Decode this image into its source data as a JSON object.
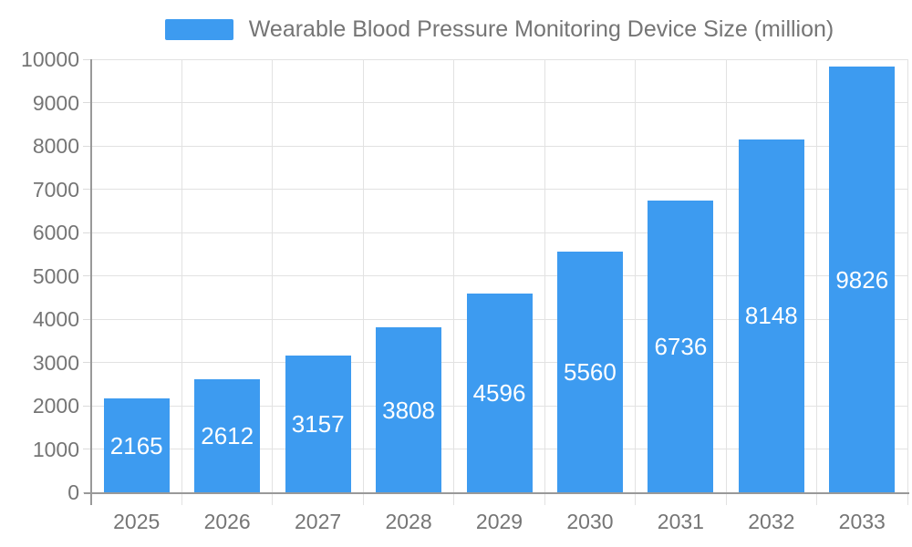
{
  "legend": {
    "label": "Wearable Blood Pressure Monitoring Device Size (million)"
  },
  "chart_data": {
    "type": "bar",
    "title": "Wearable Blood Pressure Monitoring Device Size (million)",
    "series_name": "Wearable Blood Pressure Monitoring Device Size (million)",
    "categories": [
      "2025",
      "2026",
      "2027",
      "2028",
      "2029",
      "2030",
      "2031",
      "2032",
      "2033"
    ],
    "values": [
      2165,
      2612,
      3157,
      3808,
      4596,
      5560,
      6736,
      8148,
      9826
    ],
    "value_labels": [
      "2165",
      "2612",
      "3157",
      "3808",
      "4596",
      "5560",
      "6736",
      "8148",
      "9826"
    ],
    "xlabel": "",
    "ylabel": "",
    "ylim": [
      0,
      10000
    ],
    "ytick_step": 1000,
    "ytick_labels": [
      "0",
      "1000",
      "2000",
      "3000",
      "4000",
      "5000",
      "6000",
      "7000",
      "8000",
      "9000",
      "10000"
    ],
    "grid": "horizontal and vertical light gridlines",
    "legend_position": "top-center",
    "value_label_position": "inside-center",
    "colors": {
      "bar": "#3D9BF0",
      "axis_line": "#999999",
      "gridline": "#E2E2E2",
      "tick": "#DBDBDB",
      "text": "#757575",
      "value_label": "#FFFFFF",
      "background": "#FFFFFF"
    }
  }
}
